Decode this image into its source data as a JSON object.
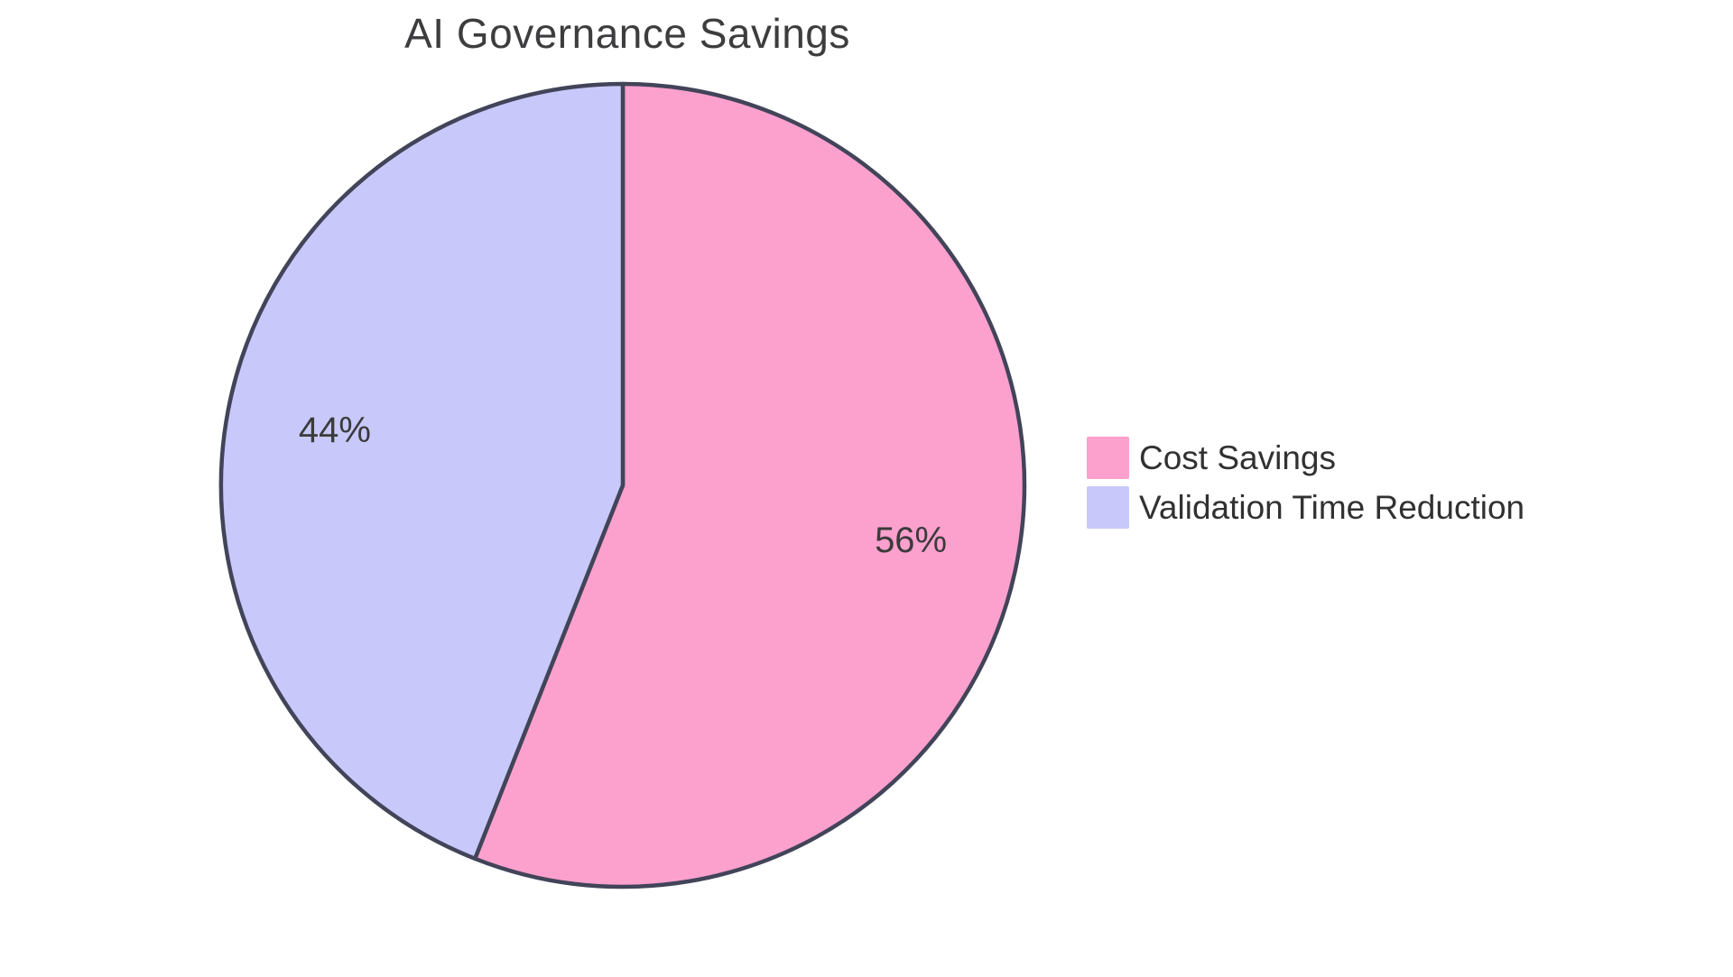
{
  "background_color": "#ffffff",
  "chart_data": {
    "type": "pie",
    "title": "AI Governance Savings",
    "slices": [
      {
        "label": "Cost Savings",
        "value": 56,
        "percent_label": "56%",
        "color": "#fca1ce"
      },
      {
        "label": "Validation Time Reduction",
        "value": 44,
        "percent_label": "44%",
        "color": "#c8c9fa"
      }
    ],
    "start_angle": "12-o'clock",
    "direction": "clockwise",
    "stroke_color": "#424459",
    "stroke_width": 4.5,
    "percent_label_color": "#3b3b3b",
    "title_color": "#3d3d3f",
    "legend_position": "right-middle",
    "legend": {
      "items": [
        {
          "label": "Cost Savings",
          "color": "#fca1ce"
        },
        {
          "label": "Validation Time Reduction",
          "color": "#c8c9fa"
        }
      ]
    }
  }
}
